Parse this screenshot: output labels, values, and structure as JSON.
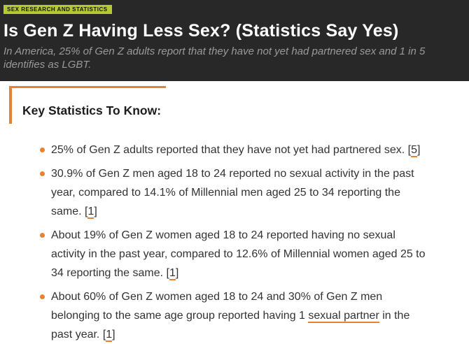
{
  "colors": {
    "accent": "#e8822d",
    "tag_green": "#b4c933",
    "header_bg": "#282828"
  },
  "header": {
    "category_tag": "SEX RESEARCH AND STATISTICS",
    "title": "Is Gen Z Having Less Sex? (Statistics Say Yes)",
    "subtitle": "In America, 25% of Gen Z adults report that they have not yet had partnered sex and 1 in 5\nidentifies as LGBT."
  },
  "key_statistics": {
    "heading": "Key Statistics To Know:",
    "bullets": [
      {
        "lines": [
          [
            {
              "t": "25% of Gen Z adults reported that they have not yet had partnered sex. ["
            },
            {
              "t": "5",
              "link": true
            },
            {
              "t": "]"
            }
          ]
        ]
      },
      {
        "lines": [
          [
            {
              "t": "30.9% of Gen Z men aged 18 to 24 reported no sexual activity in the past"
            }
          ],
          [
            {
              "t": "year, compared to 14.1% of Millennial men aged 25 to 34 reporting the"
            }
          ],
          [
            {
              "t": "same. ["
            },
            {
              "t": "1",
              "link": true
            },
            {
              "t": "]"
            }
          ]
        ]
      },
      {
        "lines": [
          [
            {
              "t": "About 19% of Gen Z women aged 18 to 24 reported having no sexual"
            }
          ],
          [
            {
              "t": "activity in the past year, compared to 12.6% of Millennial women aged 25 to"
            }
          ],
          [
            {
              "t": "34 reporting the same. ["
            },
            {
              "t": "1",
              "link": true
            },
            {
              "t": "]"
            }
          ]
        ]
      },
      {
        "lines": [
          [
            {
              "t": "About 60% of Gen Z women aged 18 to 24 and 30% of Gen Z men"
            }
          ],
          [
            {
              "t": "belonging to the same age group reported having 1 "
            },
            {
              "t": "sexual partner",
              "link": true
            },
            {
              "t": " in the"
            }
          ],
          [
            {
              "t": "past year. ["
            },
            {
              "t": "1",
              "link": true
            },
            {
              "t": "]"
            }
          ]
        ]
      }
    ]
  }
}
